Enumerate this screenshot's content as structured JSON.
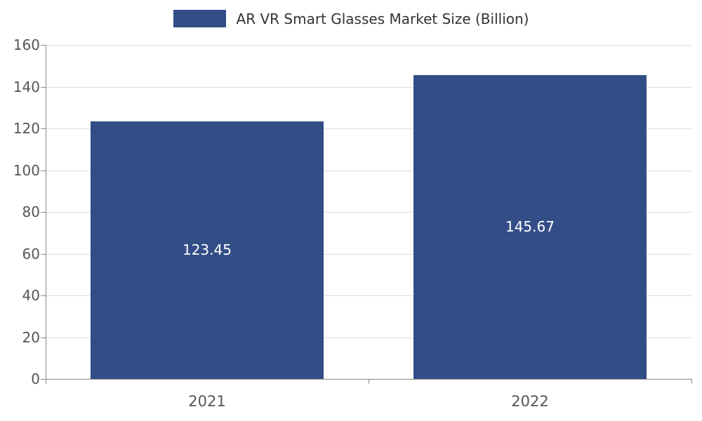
{
  "colors": {
    "bar": "#334e87",
    "grid": "#dddddd",
    "axis": "#888888",
    "tick_text": "#555555",
    "title_text": "#333333",
    "value_text": "#ffffff",
    "background": "#ffffff"
  },
  "legend": {
    "label": "AR VR Smart Glasses Market Size (Billion)"
  },
  "chart_data": {
    "type": "bar",
    "title": "AR VR Smart Glasses Market Size (Billion)",
    "categories": [
      "2021",
      "2022"
    ],
    "values": [
      123.45,
      145.67
    ],
    "value_labels": [
      "123.45",
      "145.67"
    ],
    "xlabel": "",
    "ylabel": "",
    "ylim": [
      0,
      160
    ],
    "ytick_step": 20,
    "ytick_labels": [
      "0",
      "20",
      "40",
      "60",
      "80",
      "100",
      "120",
      "140",
      "160"
    ],
    "grid": true,
    "legend_position": "top-center",
    "series": [
      {
        "name": "AR VR Smart Glasses Market Size (Billion)",
        "values": [
          123.45,
          145.67
        ]
      }
    ]
  }
}
